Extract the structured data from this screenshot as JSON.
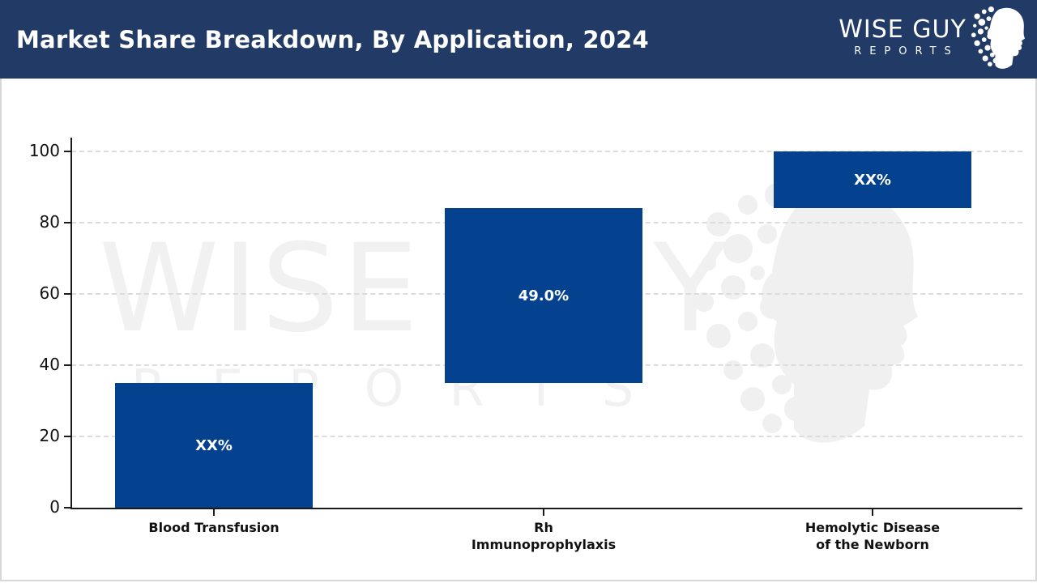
{
  "header": {
    "title": "Market Share Breakdown, By Application, 2024",
    "logo": {
      "line1": "WISE GUY",
      "line2": "REPORTS"
    }
  },
  "watermark": {
    "line1": "WISE GUY",
    "line2": "REPORTS"
  },
  "colors": {
    "header_bg": "#213a66",
    "bar": "#04428f",
    "bar_label": "#ffffff",
    "grid": "#dcdcdc",
    "axis": "#1a1a1a",
    "watermark": "#f1f1f1"
  },
  "chart_data": {
    "type": "bar",
    "variant": "floating-waterfall-segments",
    "title": "Market Share Breakdown, By Application, 2024",
    "categories": [
      "Blood Transfusion",
      "Rh\nImmunoprophylaxis",
      "Hemolytic Disease\nof the Newborn"
    ],
    "series": [
      {
        "name": "Market Share %",
        "segments": [
          {
            "category": "Blood Transfusion",
            "start": 0,
            "end": 35,
            "label": "XX%"
          },
          {
            "category": "Rh Immunoprophylaxis",
            "start": 35,
            "end": 84,
            "label": "49.0%"
          },
          {
            "category": "Hemolytic Disease of the Newborn",
            "start": 84,
            "end": 100,
            "label": "XX%"
          }
        ]
      }
    ],
    "xlabel": "",
    "ylabel": "",
    "ylim": [
      0,
      104
    ],
    "yticks": [
      0,
      20,
      40,
      60,
      80,
      100
    ],
    "grid": true,
    "grid_style": "dashed",
    "legend": false
  }
}
